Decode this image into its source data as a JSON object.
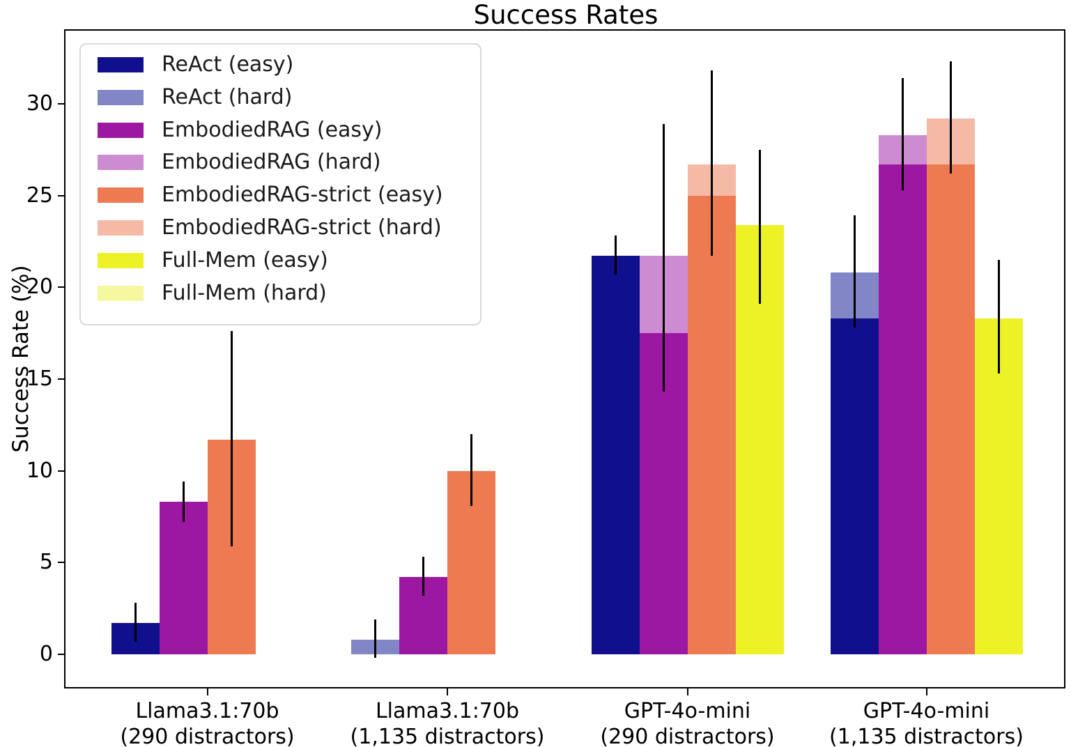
{
  "figure_title": "Success Rates",
  "chart_data": {
    "type": "bar",
    "title": "Success Rates",
    "xlabel": "",
    "ylabel": "Success Rate (%)",
    "ylim": [
      -1.8,
      34
    ],
    "yticks": [
      0,
      5,
      10,
      15,
      20,
      25,
      30
    ],
    "grid": false,
    "legend_position": "upper left",
    "series": [
      {
        "label": "ReAct (easy)",
        "color": "#10108E"
      },
      {
        "label": "ReAct (hard)",
        "color": "#8285C6"
      },
      {
        "label": "EmbodiedRAG (easy)",
        "color": "#9C18A2"
      },
      {
        "label": "EmbodiedRAG (hard)",
        "color": "#CD8BD2"
      },
      {
        "label": "EmbodiedRAG-strict (easy)",
        "color": "#ED7A51"
      },
      {
        "label": "EmbodiedRAG-strict (hard)",
        "color": "#F5BAA6"
      },
      {
        "label": "Full-Mem (easy)",
        "color": "#EDF226"
      },
      {
        "label": "Full-Mem (hard)",
        "color": "#F5F89E"
      }
    ],
    "pairs": [
      "ReAct",
      "EmbodiedRAG",
      "EmbodiedRAG-strict",
      "Full-Mem"
    ],
    "groups": [
      {
        "label_lines": [
          "Llama3.1:70b",
          "(290 distractors)"
        ],
        "bars": [
          {
            "pair": "ReAct",
            "easy": 1.7,
            "hard": null,
            "whisker": [
              0.7,
              2.8
            ]
          },
          {
            "pair": "EmbodiedRAG",
            "easy": 8.3,
            "hard": null,
            "whisker": [
              7.2,
              9.4
            ]
          },
          {
            "pair": "EmbodiedRAG-strict",
            "easy": 11.7,
            "hard": null,
            "whisker": [
              5.9,
              17.6
            ]
          },
          {
            "pair": "Full-Mem",
            "easy": null,
            "hard": null,
            "whisker": null
          }
        ]
      },
      {
        "label_lines": [
          "Llama3.1:70b",
          "(1,135 distractors)"
        ],
        "bars": [
          {
            "pair": "ReAct",
            "easy": null,
            "hard": 0.8,
            "whisker": [
              -0.2,
              1.9
            ]
          },
          {
            "pair": "EmbodiedRAG",
            "easy": 4.2,
            "hard": null,
            "whisker": [
              3.2,
              5.3
            ]
          },
          {
            "pair": "EmbodiedRAG-strict",
            "easy": 10.0,
            "hard": null,
            "whisker": [
              8.1,
              12.0
            ]
          },
          {
            "pair": "Full-Mem",
            "easy": null,
            "hard": null,
            "whisker": null
          }
        ]
      },
      {
        "label_lines": [
          "GPT-4o-mini",
          "(290 distractors)"
        ],
        "bars": [
          {
            "pair": "ReAct",
            "easy": 21.7,
            "hard": null,
            "whisker": [
              20.7,
              22.8
            ]
          },
          {
            "pair": "EmbodiedRAG",
            "easy": 17.5,
            "hard": 21.7,
            "whisker": [
              14.3,
              28.9
            ]
          },
          {
            "pair": "EmbodiedRAG-strict",
            "easy": 25.0,
            "hard": 26.7,
            "whisker": [
              21.7,
              31.8
            ]
          },
          {
            "pair": "Full-Mem",
            "easy": 23.4,
            "hard": null,
            "whisker": [
              19.1,
              27.5
            ]
          }
        ]
      },
      {
        "label_lines": [
          "GPT-4o-mini",
          "(1,135 distractors)"
        ],
        "bars": [
          {
            "pair": "ReAct",
            "easy": 18.3,
            "hard": 20.8,
            "whisker": [
              17.8,
              23.9
            ]
          },
          {
            "pair": "EmbodiedRAG",
            "easy": 26.7,
            "hard": 28.3,
            "whisker": [
              25.3,
              31.4
            ]
          },
          {
            "pair": "EmbodiedRAG-strict",
            "easy": 26.7,
            "hard": 29.2,
            "whisker": [
              26.2,
              32.3
            ]
          },
          {
            "pair": "Full-Mem",
            "easy": 18.3,
            "hard": null,
            "whisker": [
              15.3,
              21.5
            ]
          }
        ]
      }
    ]
  }
}
